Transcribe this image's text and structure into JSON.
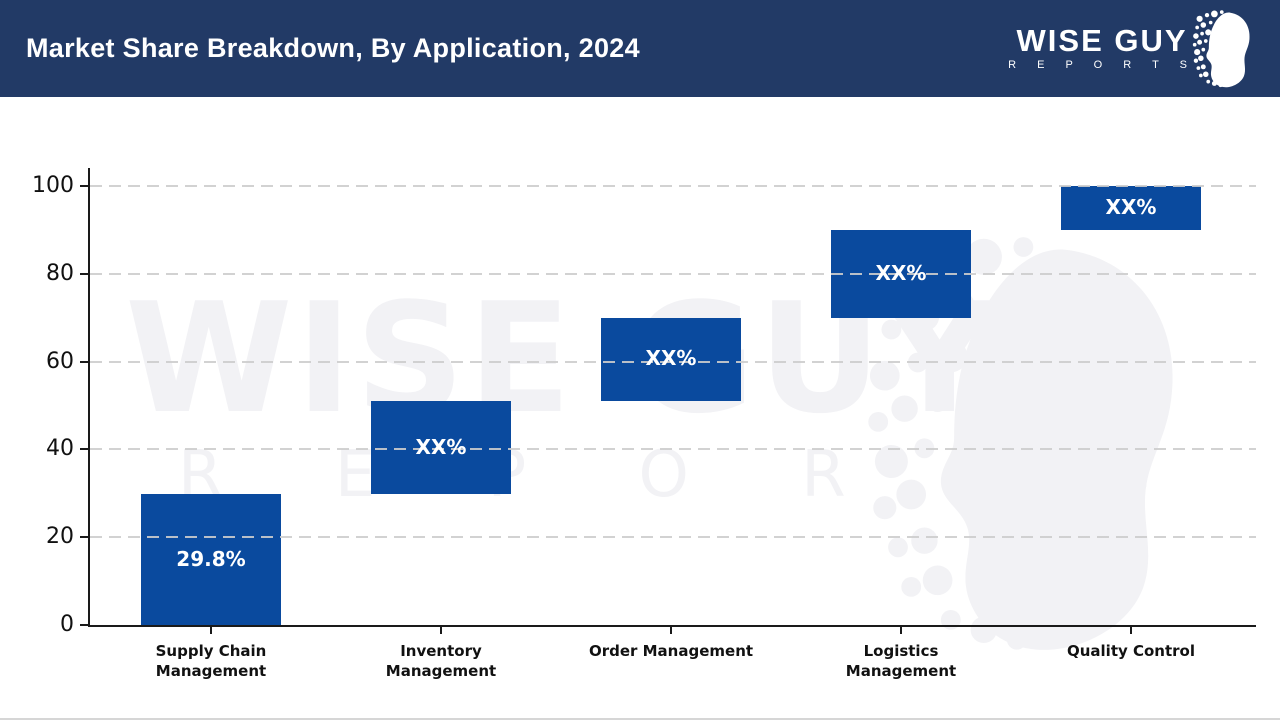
{
  "header": {
    "title": "Market Share Breakdown, By Application, 2024",
    "logo_line1": "WISE GUY",
    "logo_line2": "R E P O R T S"
  },
  "watermark": {
    "line1": "WISE GUY",
    "line2": "R E P O R T S"
  },
  "chart_data": {
    "type": "bar",
    "variant": "waterfall",
    "title": "Market Share Breakdown, By Application, 2024",
    "categories": [
      "Supply Chain Management",
      "Inventory Management",
      "Order Management",
      "Logistics Management",
      "Quality Control"
    ],
    "category_lines": [
      [
        "Supply Chain",
        "Management"
      ],
      [
        "Inventory",
        "Management"
      ],
      [
        "Order Management"
      ],
      [
        "Logistics",
        "Management"
      ],
      [
        "Quality Control"
      ]
    ],
    "segments": [
      {
        "category": "Supply Chain Management",
        "label": "29.8%",
        "start": 0,
        "end": 29.8
      },
      {
        "category": "Inventory Management",
        "label": "XX%",
        "start": 29.8,
        "end": 51
      },
      {
        "category": "Order Management",
        "label": "XX%",
        "start": 51,
        "end": 70
      },
      {
        "category": "Logistics Management",
        "label": "XX%",
        "start": 70,
        "end": 90
      },
      {
        "category": "Quality Control",
        "label": "XX%",
        "start": 90,
        "end": 100
      }
    ],
    "yticks": [
      0,
      20,
      40,
      60,
      80,
      100
    ],
    "ylim": [
      0,
      104
    ],
    "xlabel": "",
    "ylabel": "",
    "legend": "none",
    "grid": "horizontal-dashed",
    "colors": {
      "bar": "#0A4A9E",
      "header_bg": "#223A66",
      "gridline": "#DCDCDC",
      "axis": "#1A1A1A",
      "watermark": "#F2F2F5",
      "title_text": "#FFFFFF"
    }
  }
}
